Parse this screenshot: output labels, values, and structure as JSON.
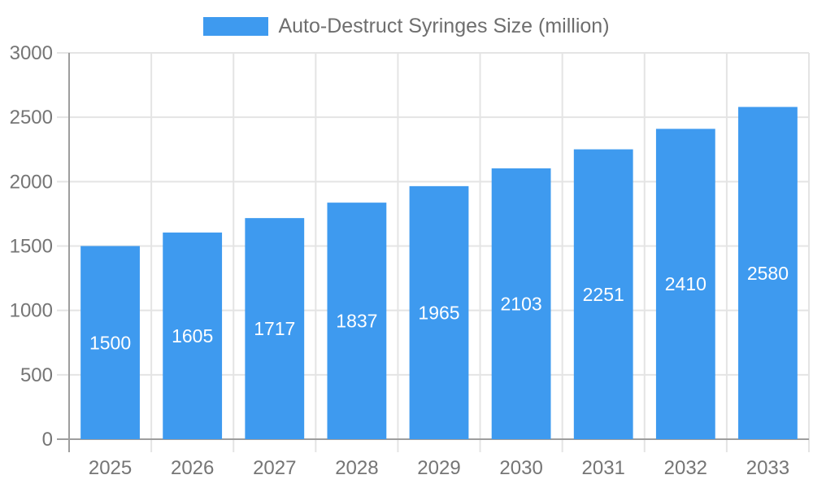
{
  "chart_data": {
    "type": "bar",
    "title": "Auto-Destruct Syringes Size (million)",
    "xlabel": "",
    "ylabel": "",
    "categories": [
      "2025",
      "2026",
      "2027",
      "2028",
      "2029",
      "2030",
      "2031",
      "2032",
      "2033"
    ],
    "values": [
      1500,
      1605,
      1717,
      1837,
      1965,
      2103,
      2251,
      2410,
      2580
    ],
    "ylim": [
      0,
      3000
    ],
    "yticks": [
      0,
      500,
      1000,
      1500,
      2000,
      2500,
      3000
    ],
    "grid": true,
    "legend_position": "top-center",
    "bar_value_labels": true,
    "colors": {
      "bar": "#3E9AEF",
      "bar_label": "#FFFFFF",
      "grid": "#E4E4E4",
      "axis": "#9E9E9E",
      "tick_text": "#757575",
      "legend_text": "#6E6E6E",
      "background": "#FFFFFF"
    }
  }
}
